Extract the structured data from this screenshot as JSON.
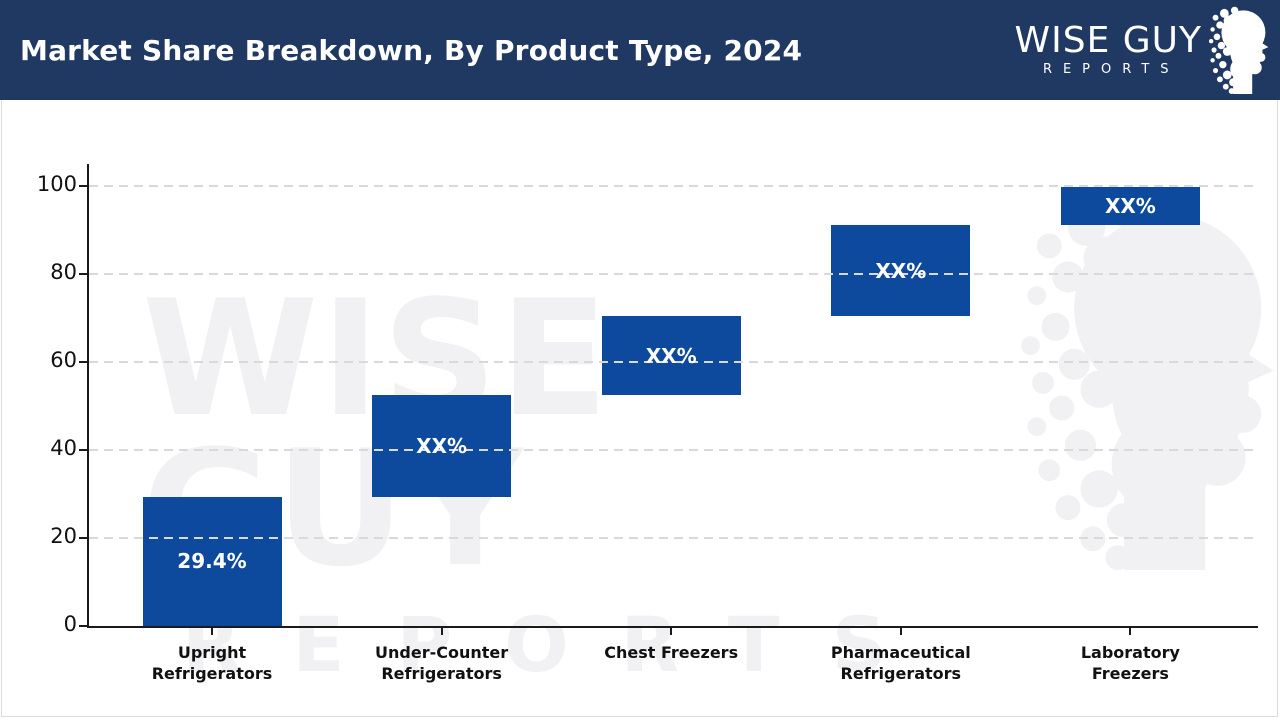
{
  "header": {
    "bg_color": "#1f3963",
    "logo": {
      "wordmark": "WISE GUY",
      "tagline": "REPORTS"
    }
  },
  "watermark": {
    "line1": "WISE GUY",
    "line2": "REPORTS"
  },
  "chart_data": {
    "type": "bar",
    "subtype": "floating-waterfall",
    "title": "Market Share Breakdown, By Product Type, 2024",
    "categories": [
      {
        "lines": [
          "Upright",
          "Refrigerators"
        ]
      },
      {
        "lines": [
          "Under-Counter",
          "Refrigerators"
        ]
      },
      {
        "lines": [
          "Chest Freezers"
        ]
      },
      {
        "lines": [
          "Pharmaceutical",
          "Refrigerators"
        ]
      },
      {
        "lines": [
          "Laboratory",
          "Freezers"
        ]
      }
    ],
    "segments": [
      {
        "start": 0,
        "end": 29.4,
        "label": "29.4%"
      },
      {
        "start": 29.4,
        "end": 52.5,
        "label": "XX%"
      },
      {
        "start": 52.5,
        "end": 70.3,
        "label": "XX%"
      },
      {
        "start": 70.3,
        "end": 91.0,
        "label": "XX%"
      },
      {
        "start": 91.0,
        "end": 99.6,
        "label": "XX%"
      }
    ],
    "yticks": [
      0,
      20,
      40,
      60,
      80,
      100
    ],
    "ylim": [
      0,
      104
    ],
    "xlabel": "",
    "ylabel": "",
    "grid": "dashed-horizontal",
    "legend": "none",
    "bar_color": "#0d4a9e",
    "bar_label_color": "#ffffff",
    "gridline_color": "#d9d9d9",
    "axis_color": "#1a1a1a"
  }
}
